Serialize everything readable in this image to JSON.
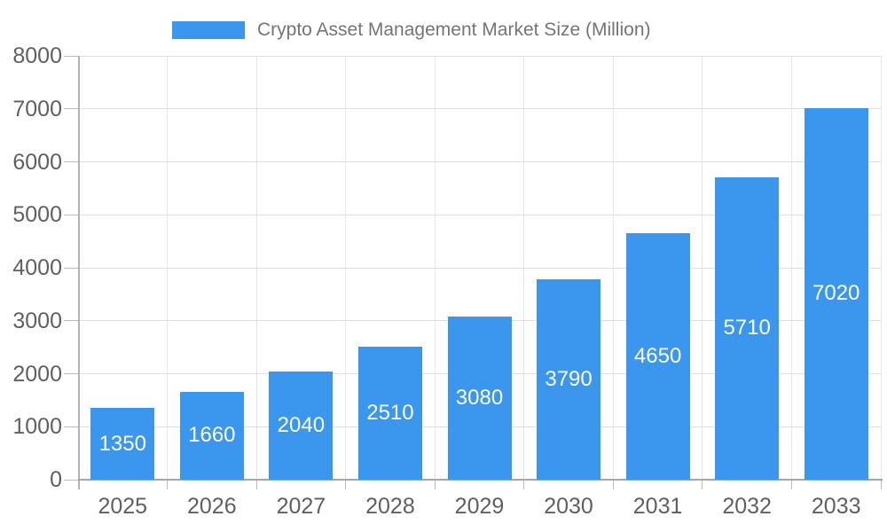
{
  "chart_data": {
    "type": "bar",
    "title": "Crypto Asset Management Market Size (Million)",
    "legend_position": "top",
    "categories": [
      "2025",
      "2026",
      "2027",
      "2028",
      "2029",
      "2030",
      "2031",
      "2032",
      "2033"
    ],
    "values": [
      1350,
      1660,
      2040,
      2510,
      3080,
      3790,
      4650,
      5710,
      7020
    ],
    "xlabel": "",
    "ylabel": "",
    "ylim": [
      0,
      8000
    ],
    "yticks": [
      0,
      1000,
      2000,
      3000,
      4000,
      5000,
      6000,
      7000,
      8000
    ],
    "grid": true,
    "value_labels_shown": true,
    "colors": {
      "bar": "#3b96ed",
      "value_label": "#ffffff",
      "axis_label": "#606060",
      "title": "#757575",
      "gridline": "#e0e0e0",
      "gridline_vertical": "#e6e6e6",
      "tick": "#bdbdbd",
      "axis_line": "#a6a6a6",
      "y_axis_line": "#b3b3b3"
    }
  }
}
